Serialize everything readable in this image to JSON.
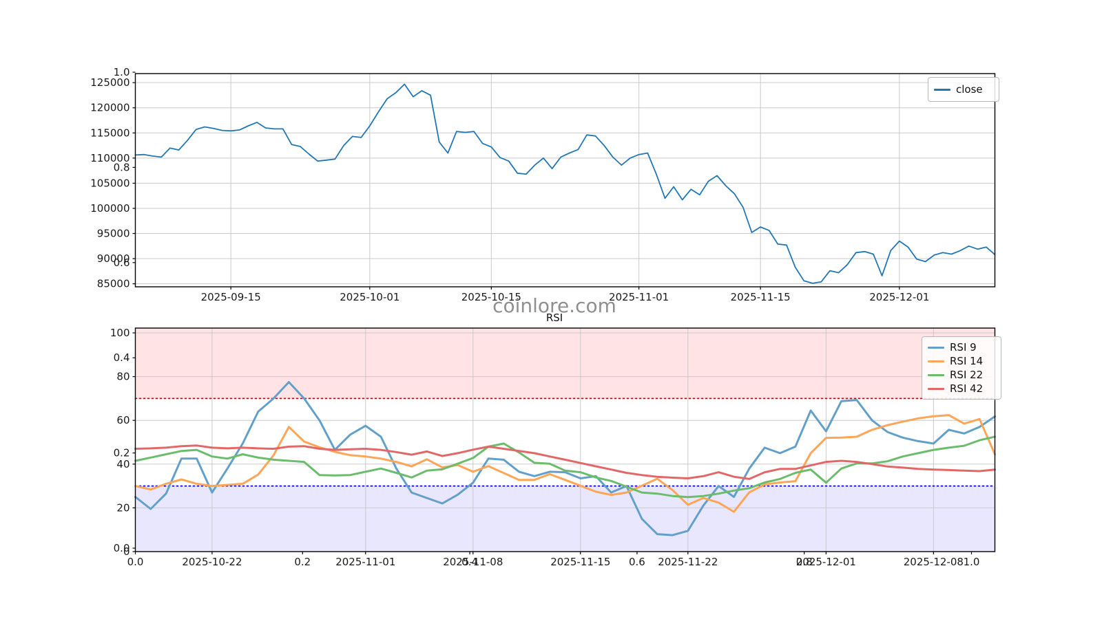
{
  "watermark": "coinlore.com",
  "colors": {
    "close": "#1f77b4",
    "rsi9": "#62a0ca",
    "rsi14": "#ffa556",
    "rsi22": "#6bbc6b",
    "rsi42": "#e26868",
    "overbought_band": "rgba(255,60,70,0.14)",
    "oversold_band": "rgba(70,60,235,0.12)",
    "overbought_line": "#cc0011",
    "oversold_line": "#0000cc",
    "grid": "#c9c9c9",
    "border": "#000000",
    "tick_text": "#1a1a1a"
  },
  "overlay_axis": {
    "x_labels": [
      "0.0",
      "0.2",
      "0.4",
      "0.6",
      "0.8",
      "1.0"
    ],
    "y_labels": [
      "1.0",
      "0.8",
      "0.6",
      "0.4",
      "0.2",
      "0.0"
    ]
  },
  "chart_data": [
    {
      "type": "line",
      "title": "",
      "x_start": "2025-09-04",
      "x_freq": "daily",
      "ylim": [
        84400,
        126800
      ],
      "ytick_labels": [
        "85000",
        "90000",
        "95000",
        "100000",
        "105000",
        "110000",
        "115000",
        "120000",
        "125000"
      ],
      "xtick_labels": [
        "2025-09-15",
        "2025-10-01",
        "2025-10-15",
        "2025-11-01",
        "2025-11-15",
        "2025-12-01"
      ],
      "legend_position": "upper right",
      "grid": true,
      "series": [
        {
          "name": "close",
          "color_key": "close",
          "values": [
            110600,
            110700,
            110400,
            110200,
            112000,
            111600,
            113500,
            115700,
            116200,
            115900,
            115500,
            115400,
            115600,
            116400,
            117100,
            116000,
            115800,
            115800,
            112700,
            112300,
            110800,
            109400,
            109600,
            109800,
            112500,
            114300,
            114100,
            116400,
            119200,
            121800,
            123000,
            124700,
            122200,
            123400,
            122500,
            113200,
            111000,
            115300,
            115100,
            115300,
            112900,
            112200,
            110100,
            109400,
            107000,
            106800,
            108600,
            110000,
            107900,
            110200,
            111000,
            111700,
            114600,
            114400,
            112500,
            110200,
            108600,
            110000,
            110700,
            111000,
            106800,
            102000,
            104300,
            101700,
            103800,
            102700,
            105400,
            106500,
            104500,
            102900,
            100200,
            95200,
            96300,
            95600,
            92900,
            92700,
            88300,
            85600,
            85100,
            85400,
            87600,
            87200,
            88800,
            91200,
            91400,
            90900,
            86600,
            91600,
            93500,
            92300,
            89900,
            89400,
            90700,
            91200,
            90900,
            91600,
            92500,
            91900,
            92300,
            90800
          ]
        }
      ]
    },
    {
      "type": "line",
      "title": "RSI",
      "x_start": "2025-10-17",
      "x_freq": "daily",
      "ylim": [
        0,
        102.2
      ],
      "ytick_labels": [
        "0",
        "20",
        "40",
        "60",
        "80",
        "100"
      ],
      "xtick_labels": [
        "2025-10-22",
        "2025-11-01",
        "2025-11-08",
        "2025-11-15",
        "2025-11-22",
        "2025-12-01",
        "2025-12-08"
      ],
      "overbought_level": 70,
      "oversold_level": 30,
      "legend_position": "upper right",
      "grid": true,
      "series": [
        {
          "name": "RSI 9",
          "color_key": "rsi9",
          "values": [
            25,
            19.5,
            26.5,
            42.5,
            42.5,
            27,
            38,
            49.5,
            64,
            70,
            77.5,
            70,
            60,
            46.5,
            53.5,
            57.5,
            52.5,
            38,
            27,
            24.5,
            22,
            26,
            31.5,
            42.5,
            42,
            36.5,
            34.5,
            36.5,
            36.3,
            33.5,
            34.5,
            27,
            30,
            15,
            8,
            7.5,
            9.5,
            21,
            30,
            25,
            38,
            47.5,
            45,
            48,
            64.5,
            55,
            68.8,
            69.3,
            60,
            54.7,
            52.1,
            50.5,
            49.4,
            55.7,
            54,
            57,
            61.8
          ]
        },
        {
          "name": "RSI 14",
          "color_key": "rsi14",
          "values": [
            30,
            28.4,
            31,
            33,
            31,
            30,
            30.5,
            31,
            35.2,
            44,
            57,
            50.3,
            47.7,
            45.6,
            44.1,
            43.5,
            42.5,
            41,
            39,
            42.2,
            38.5,
            39.6,
            36.5,
            39.1,
            35.9,
            32.8,
            32.8,
            35.4,
            32.8,
            30.1,
            27.4,
            25.9,
            27,
            30.1,
            33.3,
            28.1,
            21.4,
            24.5,
            22.4,
            18.2,
            27.1,
            30.7,
            31.6,
            32.2,
            45,
            52,
            52.1,
            52.5,
            55.7,
            57.8,
            59.4,
            60.9,
            61.9,
            62.4,
            58.5,
            60.6,
            44.5
          ]
        },
        {
          "name": "RSI 22",
          "color_key": "rsi22",
          "values": [
            41.5,
            43,
            44.5,
            46,
            46.5,
            43.5,
            42.5,
            44.5,
            43,
            42,
            41.5,
            41,
            35,
            34.8,
            35,
            36.5,
            38,
            36,
            33.9,
            37,
            37.6,
            40.2,
            42.8,
            48,
            49.4,
            45.3,
            40.6,
            40.2,
            37,
            36.3,
            33.9,
            32.3,
            29.7,
            27,
            26.5,
            25.4,
            24.9,
            25.4,
            26.5,
            27.9,
            29,
            31.6,
            33.2,
            36,
            37.5,
            31.5,
            38,
            40.3,
            40.3,
            41.3,
            43.5,
            45,
            46.5,
            47.5,
            48.4,
            50.9,
            52.5
          ]
        },
        {
          "name": "RSI 42",
          "color_key": "rsi42",
          "values": [
            47,
            47.2,
            47.5,
            48.2,
            48.5,
            47.5,
            47.2,
            47.5,
            47.2,
            47,
            48,
            48.2,
            47,
            46.5,
            46.8,
            47,
            46.5,
            45.5,
            44.3,
            45.8,
            43.7,
            45,
            46.6,
            48,
            47,
            46,
            45,
            43.5,
            42,
            40.5,
            39,
            37.5,
            36,
            35,
            34.2,
            33.8,
            33.5,
            34.5,
            36.3,
            34.2,
            33.2,
            36.3,
            37.8,
            37.8,
            39.4,
            41,
            41.5,
            41,
            40,
            38.9,
            38.4,
            37.8,
            37.5,
            37.3,
            37,
            36.8,
            37.5
          ]
        }
      ]
    }
  ]
}
